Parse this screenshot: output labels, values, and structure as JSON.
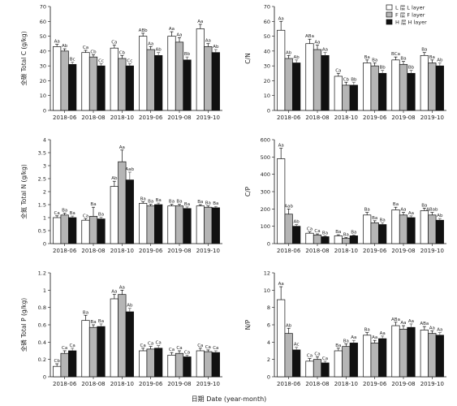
{
  "figure": {
    "xlabel": "日期 Date (year-month)",
    "legend": [
      "L 层 L layer",
      "F 层 F layer",
      "H 层 H layer"
    ],
    "colors": {
      "L": "#ffffff",
      "F": "#b5b5b5",
      "H": "#111111",
      "stroke": "#111111"
    }
  },
  "chart_data": [
    {
      "type": "bar",
      "ylabel": "全碳 Total C (g/kg)",
      "ylim": [
        0,
        70
      ],
      "yticks": [
        0,
        10,
        20,
        30,
        40,
        50,
        60,
        70
      ],
      "categories": [
        "2018-06",
        "2018-08",
        "2018-10",
        "2019-06",
        "2019-08",
        "2019-10"
      ],
      "series": [
        {
          "name": "L 层 L layer",
          "values": [
            43,
            39,
            42,
            50,
            50,
            55
          ],
          "errors": [
            1.5,
            1.5,
            2,
            2,
            3,
            3
          ]
        },
        {
          "name": "F 层 F layer",
          "values": [
            40,
            36,
            35,
            41,
            46,
            43
          ],
          "errors": [
            1.5,
            1.5,
            2,
            2,
            3,
            2
          ]
        },
        {
          "name": "H 层 H layer",
          "values": [
            31,
            30,
            30,
            37,
            34,
            39
          ],
          "errors": [
            1.5,
            1.5,
            1.5,
            2,
            2,
            2
          ]
        }
      ],
      "letters": [
        [
          "Aa",
          "Ab",
          "Bc"
        ],
        [
          "Ca",
          "Cb",
          "Cc"
        ],
        [
          "Ca",
          "Cb",
          "Cc"
        ],
        [
          "ABb",
          "Aa",
          "Ab"
        ],
        [
          "Aa",
          "Aa",
          "Bb"
        ],
        [
          "Aa",
          "Aa",
          "Ab"
        ]
      ]
    },
    {
      "type": "bar",
      "ylabel": "C/N",
      "ylim": [
        0,
        70
      ],
      "yticks": [
        0,
        10,
        20,
        30,
        40,
        50,
        60,
        70
      ],
      "categories": [
        "2018-06",
        "2018-08",
        "2018-10",
        "2019-06",
        "2019-08",
        "2019-10"
      ],
      "series": [
        {
          "name": "L 层 L layer",
          "values": [
            54,
            45,
            23,
            32,
            34,
            37
          ],
          "errors": [
            6,
            3,
            2,
            2,
            2,
            2
          ]
        },
        {
          "name": "F 层 F layer",
          "values": [
            35,
            41,
            17,
            30,
            31,
            32
          ],
          "errors": [
            2,
            3,
            2,
            2,
            2,
            2
          ]
        },
        {
          "name": "H 层 H layer",
          "values": [
            32,
            37,
            17,
            25,
            25,
            30
          ],
          "errors": [
            2,
            2,
            2,
            2,
            2,
            2
          ]
        }
      ],
      "letters": [
        [
          "Aa",
          "Ab",
          "Ab"
        ],
        [
          "ABa",
          "Aa",
          "Aa"
        ],
        [
          "Ca",
          "Cb",
          "Bb"
        ],
        [
          "Ba",
          "Ba",
          "Bb"
        ],
        [
          "BCa",
          "Ba",
          "Bb"
        ],
        [
          "Ba",
          "Ba",
          "Ab"
        ]
      ]
    },
    {
      "type": "bar",
      "ylabel": "全氮 Total N (g/kg)",
      "ylim": [
        0,
        4.0
      ],
      "yticks": [
        0,
        0.5,
        1.0,
        1.5,
        2.0,
        2.5,
        3.0,
        3.5,
        4.0
      ],
      "categories": [
        "2018-06",
        "2018-08",
        "2018-10",
        "2019-06",
        "2019-08",
        "2019-10"
      ],
      "series": [
        {
          "name": "L 层 L layer",
          "values": [
            1.0,
            0.9,
            2.2,
            1.55,
            1.45,
            1.45
          ],
          "errors": [
            0.07,
            0.06,
            0.2,
            0.06,
            0.06,
            0.05
          ]
        },
        {
          "name": "F 层 F layer",
          "values": [
            1.1,
            1.05,
            3.15,
            1.45,
            1.45,
            1.4
          ],
          "errors": [
            0.07,
            0.35,
            0.45,
            0.06,
            0.06,
            0.05
          ]
        },
        {
          "name": "H 层 H layer",
          "values": [
            1.0,
            0.95,
            2.45,
            1.5,
            1.35,
            1.38
          ],
          "errors": [
            0.06,
            0.06,
            0.3,
            0.06,
            0.06,
            0.05
          ]
        }
      ],
      "letters": [
        [
          "Ca",
          "Ba",
          "Ba"
        ],
        [
          "Ca",
          "Ba",
          "Ba"
        ],
        [
          "Ab",
          "Aa",
          "Aab"
        ],
        [
          "Ba",
          "Ba",
          "Ba"
        ],
        [
          "Ba",
          "Ba",
          "Ba"
        ],
        [
          "Ba",
          "Ba",
          "Ba"
        ]
      ]
    },
    {
      "type": "bar",
      "ylabel": "C/P",
      "ylim": [
        0,
        600
      ],
      "yticks": [
        0,
        100,
        200,
        300,
        400,
        500,
        600
      ],
      "categories": [
        "2018-06",
        "2018-08",
        "2018-10",
        "2019-06",
        "2019-08",
        "2019-10"
      ],
      "series": [
        {
          "name": "L 层 L layer",
          "values": [
            490,
            60,
            45,
            165,
            195,
            190
          ],
          "errors": [
            60,
            8,
            6,
            15,
            15,
            15
          ]
        },
        {
          "name": "F 层 F layer",
          "values": [
            170,
            50,
            30,
            120,
            165,
            165
          ],
          "errors": [
            30,
            6,
            5,
            12,
            15,
            15
          ]
        },
        {
          "name": "H 层 H layer",
          "values": [
            100,
            40,
            45,
            110,
            150,
            135
          ],
          "errors": [
            10,
            5,
            5,
            10,
            10,
            10
          ]
        }
      ],
      "letters": [
        [
          "Aa",
          "Aab",
          "Ab"
        ],
        [
          "Ca",
          "Ca",
          "Ba"
        ],
        [
          "Ba",
          "Ba",
          "Ba"
        ],
        [
          "Ba",
          "Ba",
          "Ba"
        ],
        [
          "Ba",
          "Aa",
          "Aa"
        ],
        [
          "Ba",
          "ABab",
          "Ab"
        ]
      ]
    },
    {
      "type": "bar",
      "ylabel": "全磷 Total P (g/kg)",
      "ylim": [
        0,
        1.2
      ],
      "yticks": [
        0,
        0.2,
        0.4,
        0.6,
        0.8,
        1.0,
        1.2
      ],
      "categories": [
        "2018-06",
        "2018-08",
        "2018-10",
        "2019-06",
        "2019-08",
        "2019-10"
      ],
      "series": [
        {
          "name": "L 层 L layer",
          "values": [
            0.12,
            0.65,
            0.9,
            0.3,
            0.25,
            0.3
          ],
          "errors": [
            0.03,
            0.06,
            0.05,
            0.03,
            0.03,
            0.03
          ]
        },
        {
          "name": "F 层 F layer",
          "values": [
            0.27,
            0.57,
            0.95,
            0.32,
            0.27,
            0.29
          ],
          "errors": [
            0.03,
            0.03,
            0.05,
            0.03,
            0.03,
            0.02
          ]
        },
        {
          "name": "H 层 H layer",
          "values": [
            0.3,
            0.58,
            0.75,
            0.33,
            0.23,
            0.28
          ],
          "errors": [
            0.03,
            0.03,
            0.04,
            0.03,
            0.02,
            0.02
          ]
        }
      ],
      "letters": [
        [
          "Cb",
          "Ca",
          "Ca"
        ],
        [
          "Ba",
          "Ba",
          "Ba"
        ],
        [
          "Aa",
          "Aa",
          "Ab"
        ],
        [
          "Ca",
          "Ca",
          "Ca"
        ],
        [
          "Ca",
          "Ca",
          "Ca"
        ],
        [
          "Ca",
          "Ca",
          "Ca"
        ]
      ]
    },
    {
      "type": "bar",
      "ylabel": "N/P",
      "ylim": [
        0,
        12
      ],
      "yticks": [
        0,
        2,
        4,
        6,
        8,
        10,
        12
      ],
      "categories": [
        "2018-06",
        "2018-08",
        "2018-10",
        "2019-06",
        "2019-08",
        "2019-10"
      ],
      "series": [
        {
          "name": "L 层 L layer",
          "values": [
            8.9,
            1.8,
            3.0,
            4.8,
            5.9,
            5.4
          ],
          "errors": [
            1.5,
            0.3,
            0.3,
            0.3,
            0.4,
            0.4
          ]
        },
        {
          "name": "F 层 F layer",
          "values": [
            5.0,
            2.0,
            3.5,
            3.9,
            5.5,
            5.0
          ],
          "errors": [
            0.6,
            0.3,
            0.3,
            0.3,
            0.4,
            0.3
          ]
        },
        {
          "name": "H 层 H layer",
          "values": [
            3.1,
            1.6,
            3.9,
            4.4,
            5.7,
            4.8
          ],
          "errors": [
            0.3,
            0.2,
            0.3,
            0.3,
            0.4,
            0.3
          ]
        }
      ],
      "letters": [
        [
          "Aa",
          "Ab",
          "Ac"
        ],
        [
          "Ca",
          "Ca",
          "Ca"
        ],
        [
          "Ba",
          "Ba",
          "Aa"
        ],
        [
          "Ba",
          "Aa",
          "Aa"
        ],
        [
          "ABa",
          "Aa",
          "Aa"
        ],
        [
          "ABa",
          "Aa",
          "Aa"
        ]
      ]
    }
  ]
}
